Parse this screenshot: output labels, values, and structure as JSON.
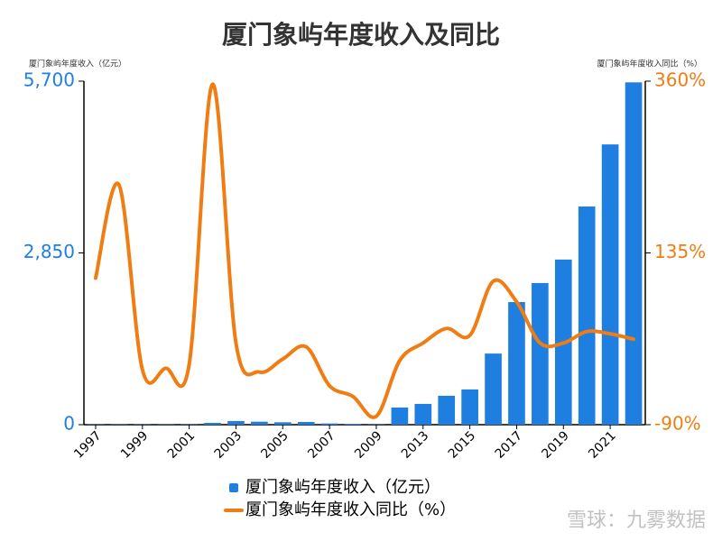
{
  "chart_data": {
    "type": "bar_line",
    "title": "厦门象屿年度收入及同比",
    "y_label": "厦门象屿年度收入（亿元）",
    "y2_label": "厦门象屿年度收入同比（%）",
    "watermark": "雪球：九雾数据",
    "categories": [
      "1997",
      null,
      "1999",
      null,
      "2001",
      null,
      "2003",
      null,
      "2005",
      null,
      "2007",
      null,
      "2009",
      null,
      "2013",
      null,
      "2015",
      null,
      "2017",
      null,
      "2019",
      null,
      "2021",
      null
    ],
    "series": [
      {
        "name": "厦门象屿年度收入（亿元）",
        "color": "#1f7fe0",
        "kind": "bar",
        "values": [
          5,
          5,
          5,
          5,
          5,
          30,
          60,
          50,
          40,
          45,
          20,
          10,
          5,
          285,
          345,
          480,
          585,
          1180,
          2035,
          2350,
          2740,
          3620,
          4650,
          5680
        ]
      },
      {
        "name": "厦门象屿年度收入同比（%）",
        "color": "#f07c14",
        "kind": "line",
        "axis": "y2",
        "values": [
          102,
          224,
          -18,
          -16,
          -11,
          356,
          17,
          -21,
          -4,
          12,
          -39,
          -53,
          -79,
          -6,
          17,
          36,
          27,
          98,
          71,
          17,
          17,
          32,
          29,
          22
        ]
      }
    ],
    "ylim": [
      0,
      5700
    ],
    "yticks": [
      0,
      {
        "value": 2850,
        "label": "2,850"
      },
      {
        "value": 5700,
        "label": "5,700"
      }
    ],
    "y2lim": [
      -90,
      360
    ],
    "y2ticks": [
      {
        "value": -90,
        "label": "-90%"
      },
      {
        "value": 135,
        "label": "135%"
      },
      {
        "value": 360,
        "label": "360%"
      }
    ]
  }
}
